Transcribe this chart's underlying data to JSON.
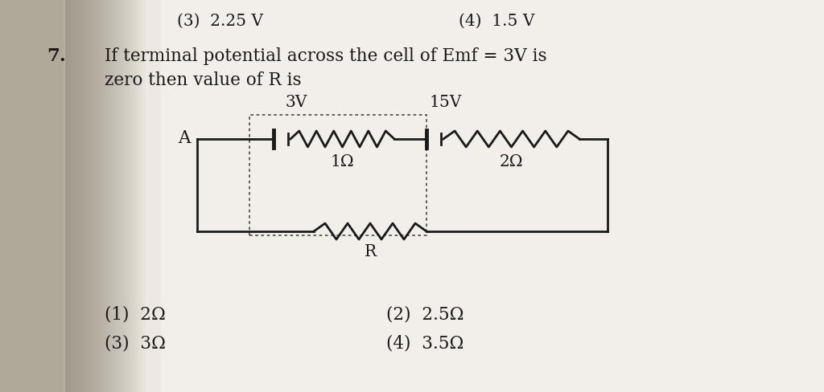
{
  "title_top_left": "(3)  2.25 V",
  "title_top_right": "(4)  1.5 V",
  "question_num": "7.",
  "question_line1": "If terminal potential across the cell of Emf = 3V is",
  "question_line2": "zero then value of R is",
  "emf1_label": "3V",
  "emf2_label": "15V",
  "node_label": "A",
  "r1_label": "1Ω",
  "r2_label": "2Ω",
  "r_label": "R",
  "opt1": "(1)  2Ω",
  "opt2": "(2)  2.5Ω",
  "opt3": "(3)  3Ω",
  "opt4": "(4)  3.5Ω",
  "bg_color": "#e8e4de",
  "page_color": "#f0ede8",
  "text_color": "#1a1a1a",
  "circuit_color": "#1a1a1a",
  "dot_color": "#555555"
}
